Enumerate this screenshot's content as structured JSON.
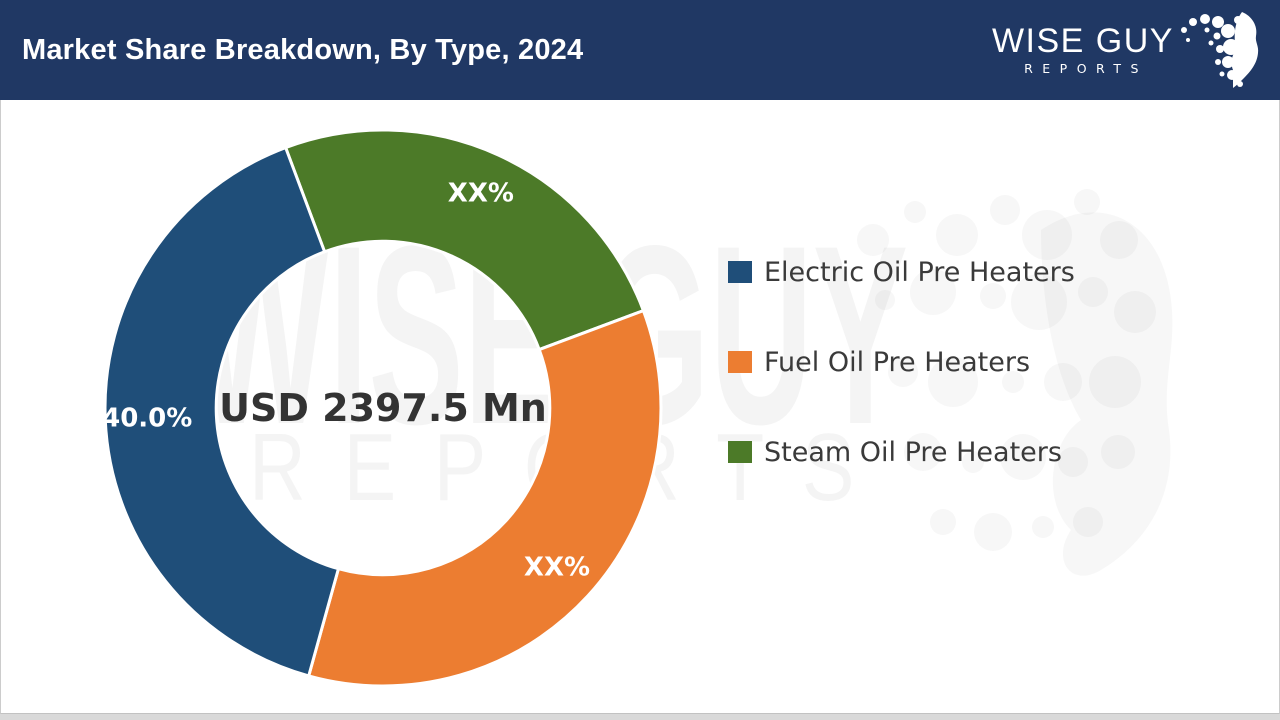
{
  "header": {
    "title": "Market Share Breakdown, By Type, 2024",
    "bg_color": "#203864"
  },
  "logo": {
    "wordmark": "WISE GUY",
    "subtext": "REPORTS",
    "face_icon": "dotted-face-profile"
  },
  "watermark": {
    "wordmark": "WISE GUY",
    "subtext": "REPORTS"
  },
  "chart_data": {
    "type": "pie",
    "subtype": "donut",
    "title": "Market Share Breakdown, By Type, 2024",
    "center_label": "USD 2397.5 Mn",
    "legend_position": "right",
    "start_angle_deg": -20.5,
    "inner_radius_ratio": 0.6,
    "slices": [
      {
        "name": "Steam Oil Pre Heaters",
        "value_pct": 25,
        "value_masked": true,
        "data_label": "XX%",
        "color": "#4C7A28"
      },
      {
        "name": "Fuel Oil Pre Heaters",
        "value_pct": 35,
        "value_masked": true,
        "data_label": "XX%",
        "color": "#EC7D31"
      },
      {
        "name": "Electric Oil Pre Heaters",
        "value_pct": 40,
        "value_masked": false,
        "data_label": "40.0%",
        "color": "#1F4E79"
      }
    ]
  },
  "legend": {
    "items": [
      {
        "label": "Electric Oil Pre Heaters",
        "color": "#1F4E79"
      },
      {
        "label": "Fuel Oil Pre Heaters",
        "color": "#EC7D31"
      },
      {
        "label": "Steam Oil Pre Heaters",
        "color": "#4C7A28"
      }
    ]
  }
}
